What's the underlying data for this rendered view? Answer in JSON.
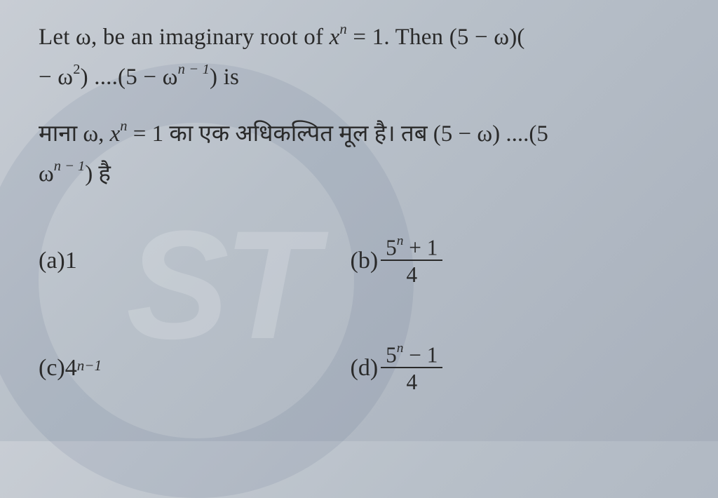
{
  "watermark": "ST",
  "question_en": {
    "l1_pre": "Let ",
    "l1_omega": "ω",
    "l1_mid": ", be an imaginary root of ",
    "l1_xn": "x",
    "l1_n": "n",
    "l1_eq": " = 1. Then (5 − ",
    "l1_omega2": "ω",
    "l1_post": ")(",
    "l2_pre": "− ",
    "l2_omega": "ω",
    "l2_sq": "2",
    "l2_mid": ") ....(5 − ",
    "l2_omega2": "ω",
    "l2_nm1": "n − 1",
    "l2_post": ") is"
  },
  "question_hi": {
    "l1_pre": "माना ",
    "l1_omega": "ω",
    "l1_mid": ", ",
    "l1_xn": "x",
    "l1_n": "n",
    "l1_eq": " = 1 का एक अधिकल्पित मूल है। तब (5 − ",
    "l1_omega2": "ω",
    "l1_post": ") ....(5",
    "l2_omega": "ω",
    "l2_nm1": "n − 1",
    "l2_post": ") है"
  },
  "options": {
    "a_label": "(a) ",
    "a_val": "1",
    "b_label": "(b) ",
    "b_num_base": "5",
    "b_num_exp": "n",
    "b_num_tail": " + 1",
    "b_den": "4",
    "c_label": "(c) ",
    "c_base": "4",
    "c_exp": "n−1",
    "d_label": "(d) ",
    "d_num_base": "5",
    "d_num_exp": "n",
    "d_num_tail": " − 1",
    "d_den": "4"
  }
}
